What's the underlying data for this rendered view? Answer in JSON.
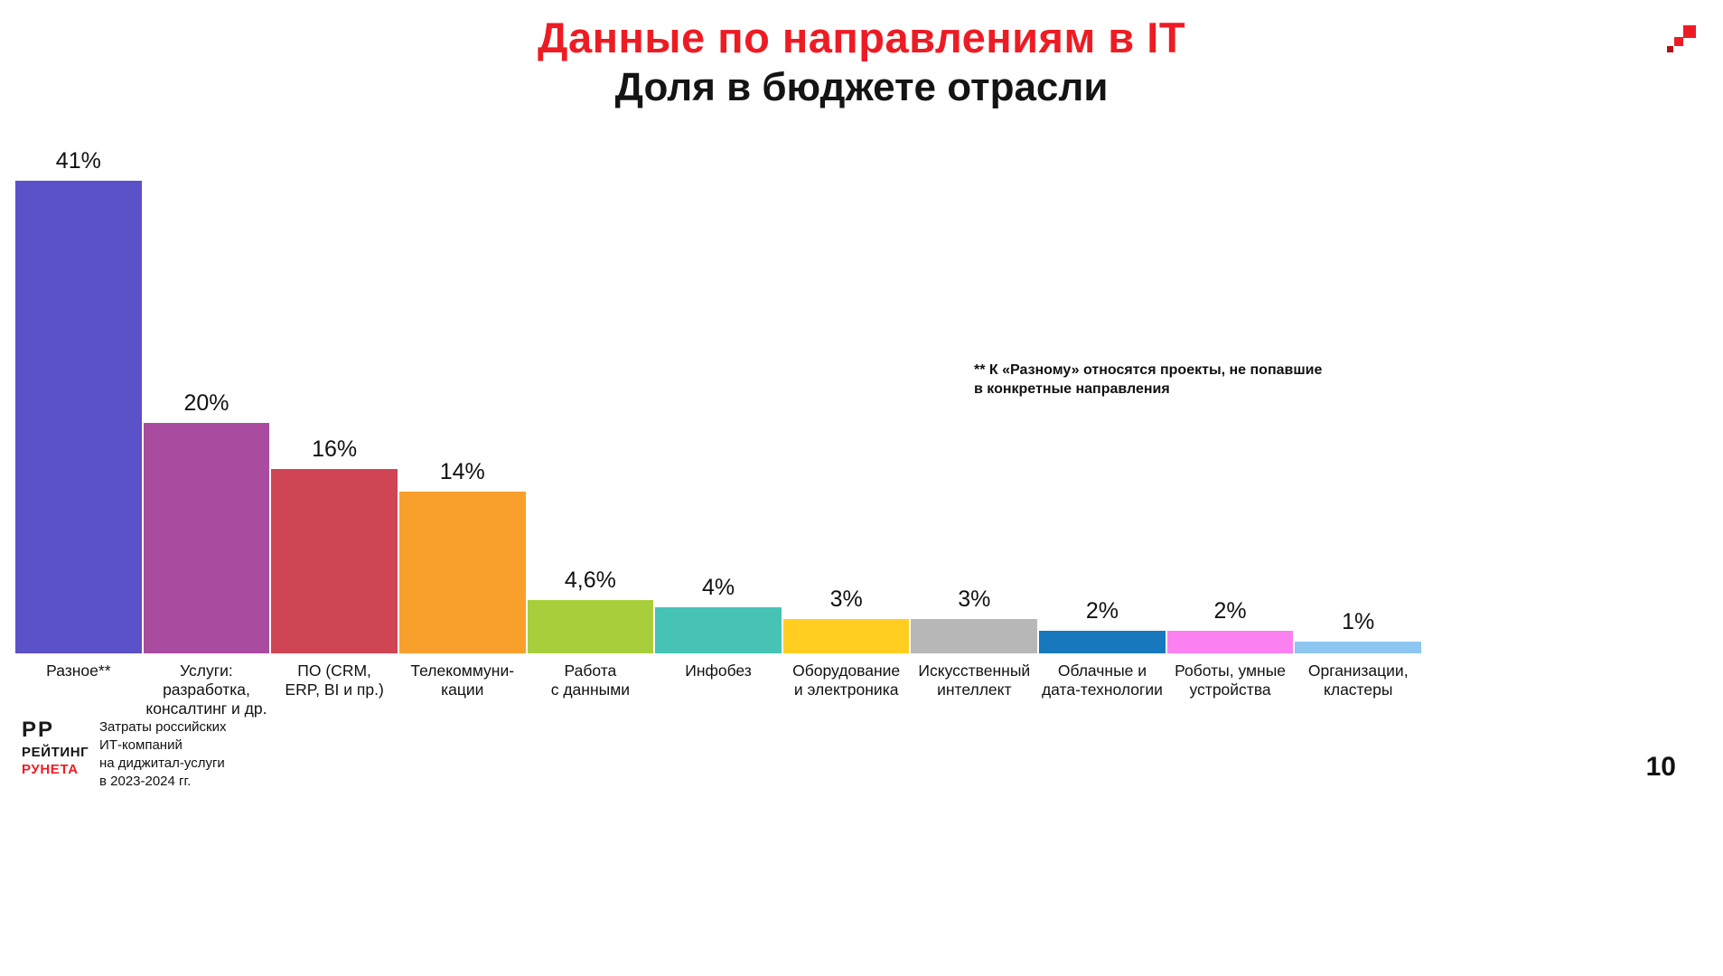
{
  "header": {
    "title": "Данные по направлениям в IT",
    "subtitle": "Доля в бюджете отрасли"
  },
  "annotation": {
    "text": "** К «Разному» относятся проекты, не попавшие\nв конкретные направления"
  },
  "chart_data": {
    "type": "bar",
    "title": "Доля в бюджете отрасли",
    "xlabel": "",
    "ylabel": "",
    "ylim": [
      0,
      41
    ],
    "grid": false,
    "legend": "none",
    "categories": [
      "Разное**",
      "Услуги:\nразработка,\nконсалтинг и др.",
      "ПО (CRM,\nERP, BI и пр.)",
      "Телекоммуни-\nкации",
      "Работа\nс данными",
      "Инфобез",
      "Оборудование\nи электроника",
      "Искусственный\nинтеллект",
      "Облачные и\nдата-технологии",
      "Роботы, умные\nустройства",
      "Организации,\nкластеры"
    ],
    "values": [
      41,
      20,
      16,
      14,
      4.6,
      4,
      3,
      3,
      2,
      2,
      1
    ],
    "value_labels": [
      "41%",
      "20%",
      "16%",
      "14%",
      "4,6%",
      "4%",
      "3%",
      "3%",
      "2%",
      "2%",
      "1%"
    ],
    "colors": [
      "#5B51C9",
      "#A94B9F",
      "#CF4553",
      "#F9A02C",
      "#A9CE3B",
      "#46C3B4",
      "#FFCE20",
      "#B7B7B7",
      "#1778BE",
      "#FB80F0",
      "#8FC6F0"
    ]
  },
  "icons": {
    "corner_mark": "rating-runeta-pixel-mark",
    "accent_color": "#ED1C24"
  },
  "footer": {
    "logo_mark": "РР",
    "logo_line1": "РЕЙТИНГ",
    "logo_line2": "РУНЕТА",
    "source": "Затраты российских\nИТ-компаний\nна диджитал-услуги\nв 2023-2024 гг.",
    "page_number": "10"
  }
}
